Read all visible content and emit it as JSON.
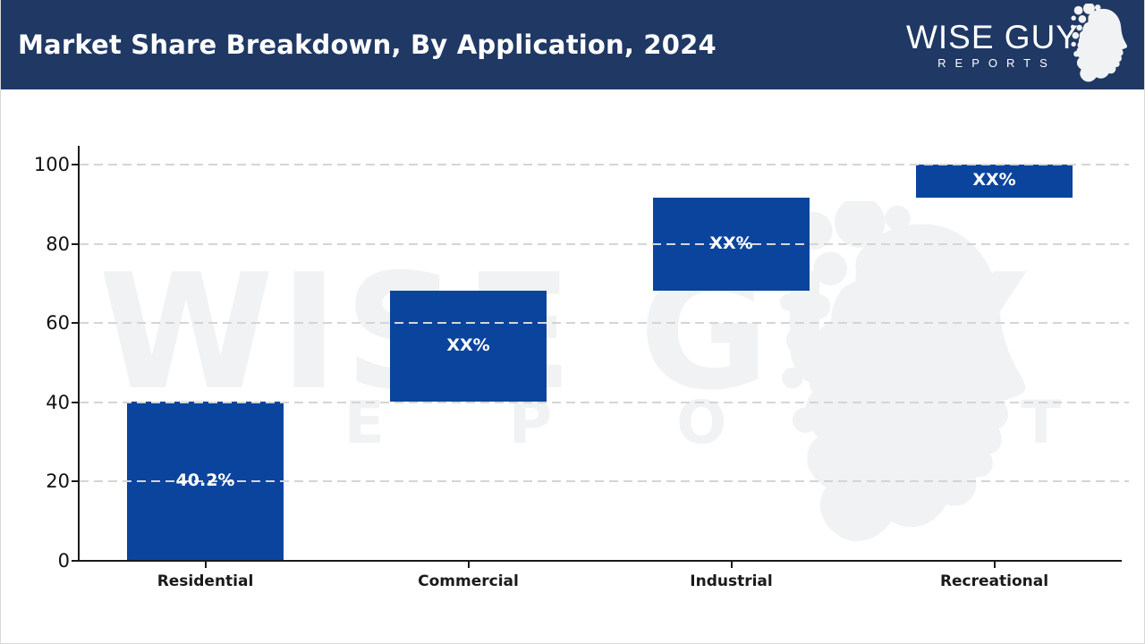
{
  "header": {
    "title": "Market Share Breakdown, By Application, 2024",
    "logo_line1": "WISE GUY",
    "logo_line2": "REPORTS"
  },
  "watermark": {
    "line1": "WISE GUY",
    "line2": "R E P O R T S"
  },
  "colors": {
    "header_bg": "#1f3864",
    "bar": "#0a449c",
    "grid": "#d5d5d5",
    "watermark": "#f1f2f4",
    "axis": "#1a1a1a",
    "bar_label": "#ffffff"
  },
  "chart_data": {
    "type": "bar",
    "subtype": "waterfall-stacked-segments",
    "title": "Market Share Breakdown, By Application, 2024",
    "categories": [
      "Residential",
      "Commercial",
      "Industrial",
      "Recreational"
    ],
    "segments": [
      {
        "category": "Residential",
        "start": 0,
        "end": 40.2,
        "label": "40.2%"
      },
      {
        "category": "Commercial",
        "start": 40.2,
        "end": 68.2,
        "label": "XX%"
      },
      {
        "category": "Industrial",
        "start": 68.2,
        "end": 91.7,
        "label": "XX%"
      },
      {
        "category": "Recreational",
        "start": 91.7,
        "end": 100,
        "label": "XX%"
      }
    ],
    "xlabel": "",
    "ylabel": "",
    "ylim": [
      0,
      100
    ],
    "yticks": [
      0,
      20,
      40,
      60,
      80,
      100
    ],
    "grid": "horizontal-dashed",
    "legend": "none"
  }
}
